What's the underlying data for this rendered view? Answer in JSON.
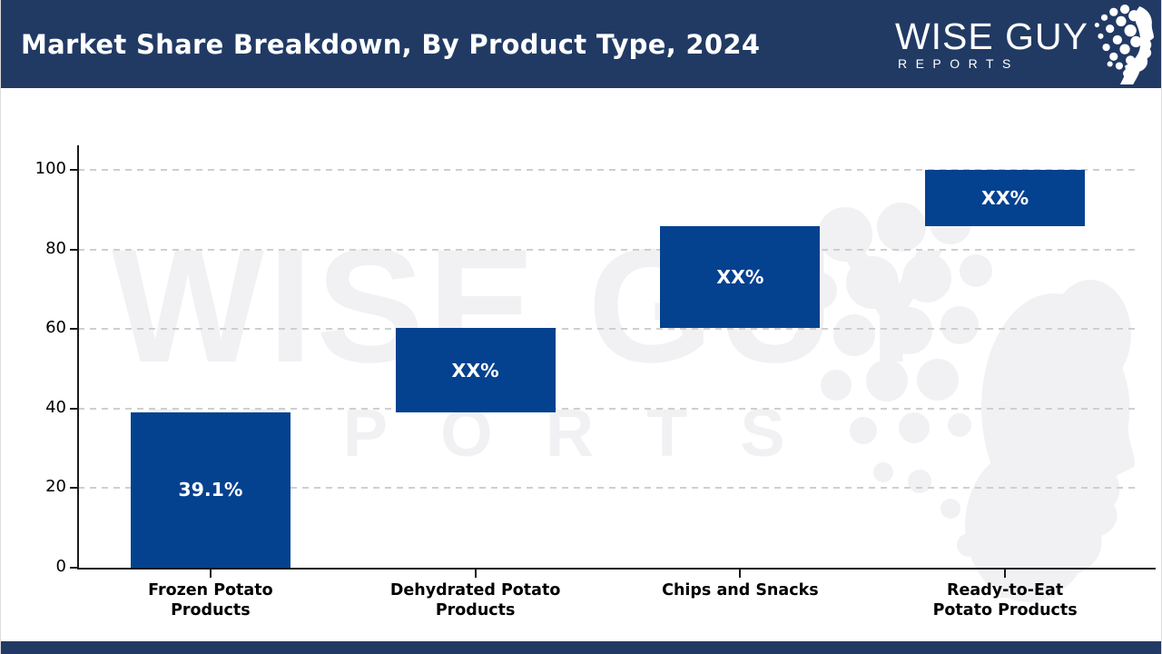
{
  "header": {
    "title": "Market Share Breakdown, By Product Type, 2024",
    "logo": {
      "brand_line1": "WISE GUY",
      "brand_line2": "REPORTS"
    }
  },
  "watermark": {
    "line1": "WISE GUY",
    "line2": "REPORTS"
  },
  "colors": {
    "header_bg": "#213a64",
    "footer_bg": "#213a64",
    "bar": "#04418f",
    "bar_label": "#ffffff",
    "grid": "#cfcfcf",
    "axis": "#1a1a1a",
    "tick_label": "#000000",
    "watermark": "#f1f1f4"
  },
  "chart_data": {
    "type": "bar",
    "subtype": "waterfall-stacked-segments",
    "title": "Market Share Breakdown, By Product Type, 2024",
    "categories": [
      "Frozen Potato\nProducts",
      "Dehydrated Potato\nProducts",
      "Chips and Snacks",
      "Ready-to-Eat\nPotato Products"
    ],
    "segments": [
      {
        "category": "Frozen Potato Products",
        "start": 0,
        "end": 39.1,
        "label": "39.1%"
      },
      {
        "category": "Dehydrated Potato Products",
        "start": 39.1,
        "end": 60.2,
        "label": "XX%"
      },
      {
        "category": "Chips and Snacks",
        "start": 60.2,
        "end": 85.8,
        "label": "XX%"
      },
      {
        "category": "Ready-to-Eat Potato Products",
        "start": 85.8,
        "end": 100,
        "label": "XX%"
      }
    ],
    "ylim": [
      0,
      100
    ],
    "yticks": [
      0,
      20,
      40,
      60,
      80,
      100
    ],
    "xlabel": "",
    "ylabel": "",
    "grid": "horizontal-dashed",
    "legend": "none"
  }
}
